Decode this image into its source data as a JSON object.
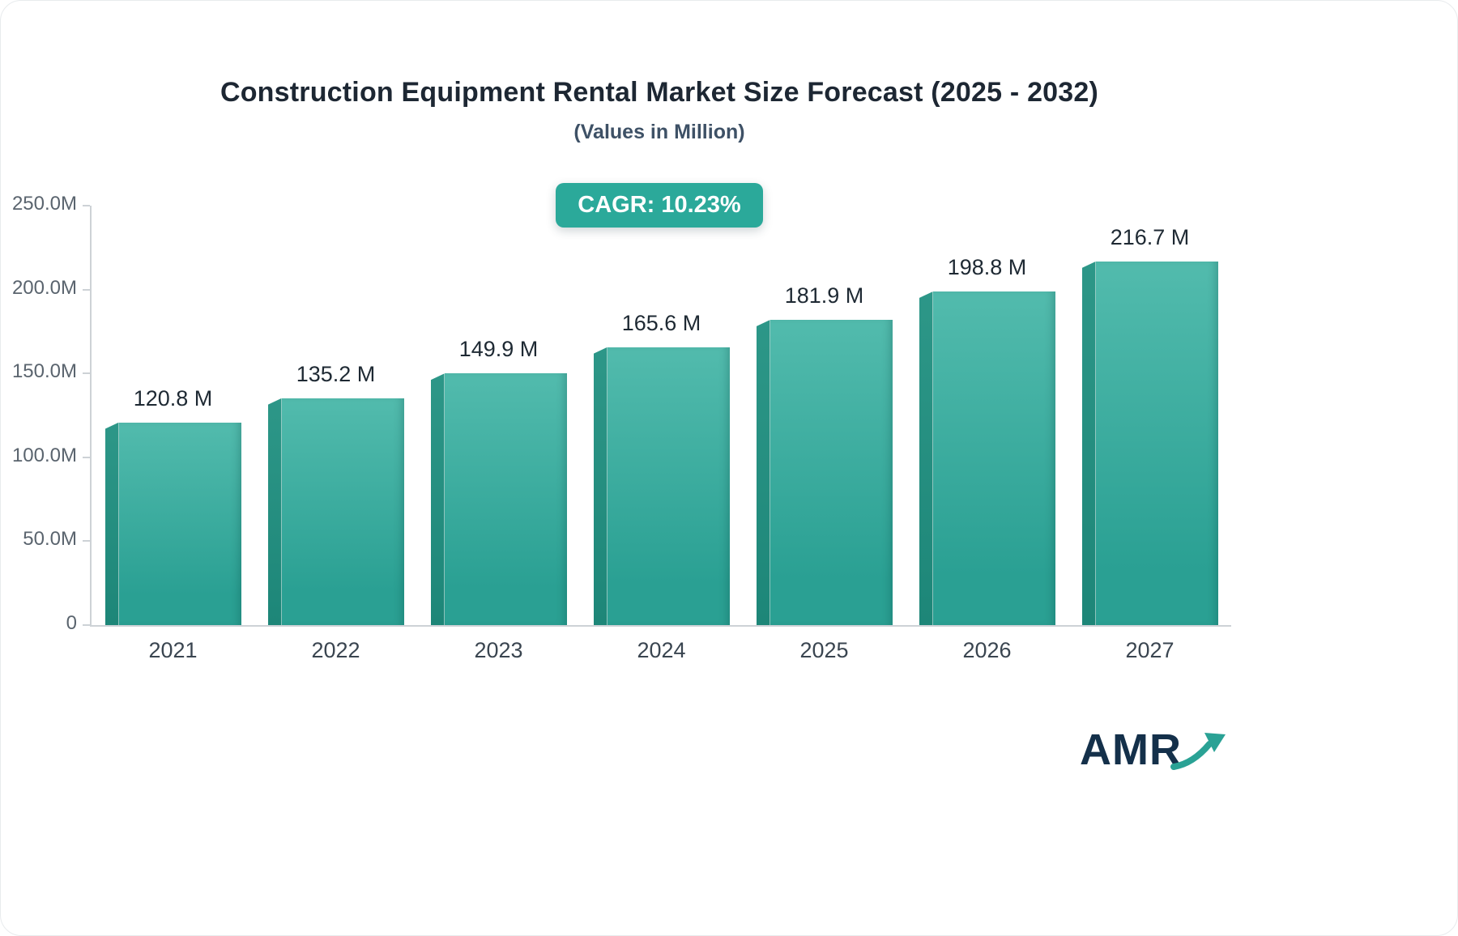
{
  "header": {
    "title": "Construction Equipment Rental Market Size Forecast (2025 - 2032)",
    "subtitle": "(Values in Million)"
  },
  "cagr_badge": {
    "label": "CAGR: 10.23%",
    "background_color": "#2BA99A",
    "text_color": "#FFFFFF"
  },
  "chart_data": {
    "type": "bar",
    "title": "Construction Equipment Rental Market Size Forecast (2025 - 2032)",
    "subtitle": "(Values in Million)",
    "categories": [
      "2021",
      "2022",
      "2023",
      "2024",
      "2025",
      "2026",
      "2027"
    ],
    "values": [
      120.8,
      135.2,
      149.9,
      165.6,
      181.9,
      198.8,
      216.7
    ],
    "value_labels": [
      "120.8 M",
      "135.2 M",
      "149.9 M",
      "165.6 M",
      "181.9 M",
      "198.8 M",
      "216.7 M"
    ],
    "xlabel": "",
    "ylabel": "",
    "ylim": [
      0,
      250
    ],
    "y_tick_labels": [
      "0",
      "50.0M",
      "100.0M",
      "150.0M",
      "200.0M",
      "250.0M"
    ],
    "grid": false,
    "legend": false,
    "annotation": "CAGR: 10.23%",
    "colors": {
      "bar_top": "#52BBAD",
      "bar_bottom": "#2AA093",
      "bar_side": "#1D8678",
      "axis_line": "#CDD2D6",
      "axis_text": "#5A646E",
      "value_text": "#1E2933",
      "title_text": "#1D2733",
      "subtitle_text": "#3E5166"
    }
  },
  "logo": {
    "text": "AMR",
    "arrow_color": "#2AA295",
    "text_color": "#14304A"
  }
}
